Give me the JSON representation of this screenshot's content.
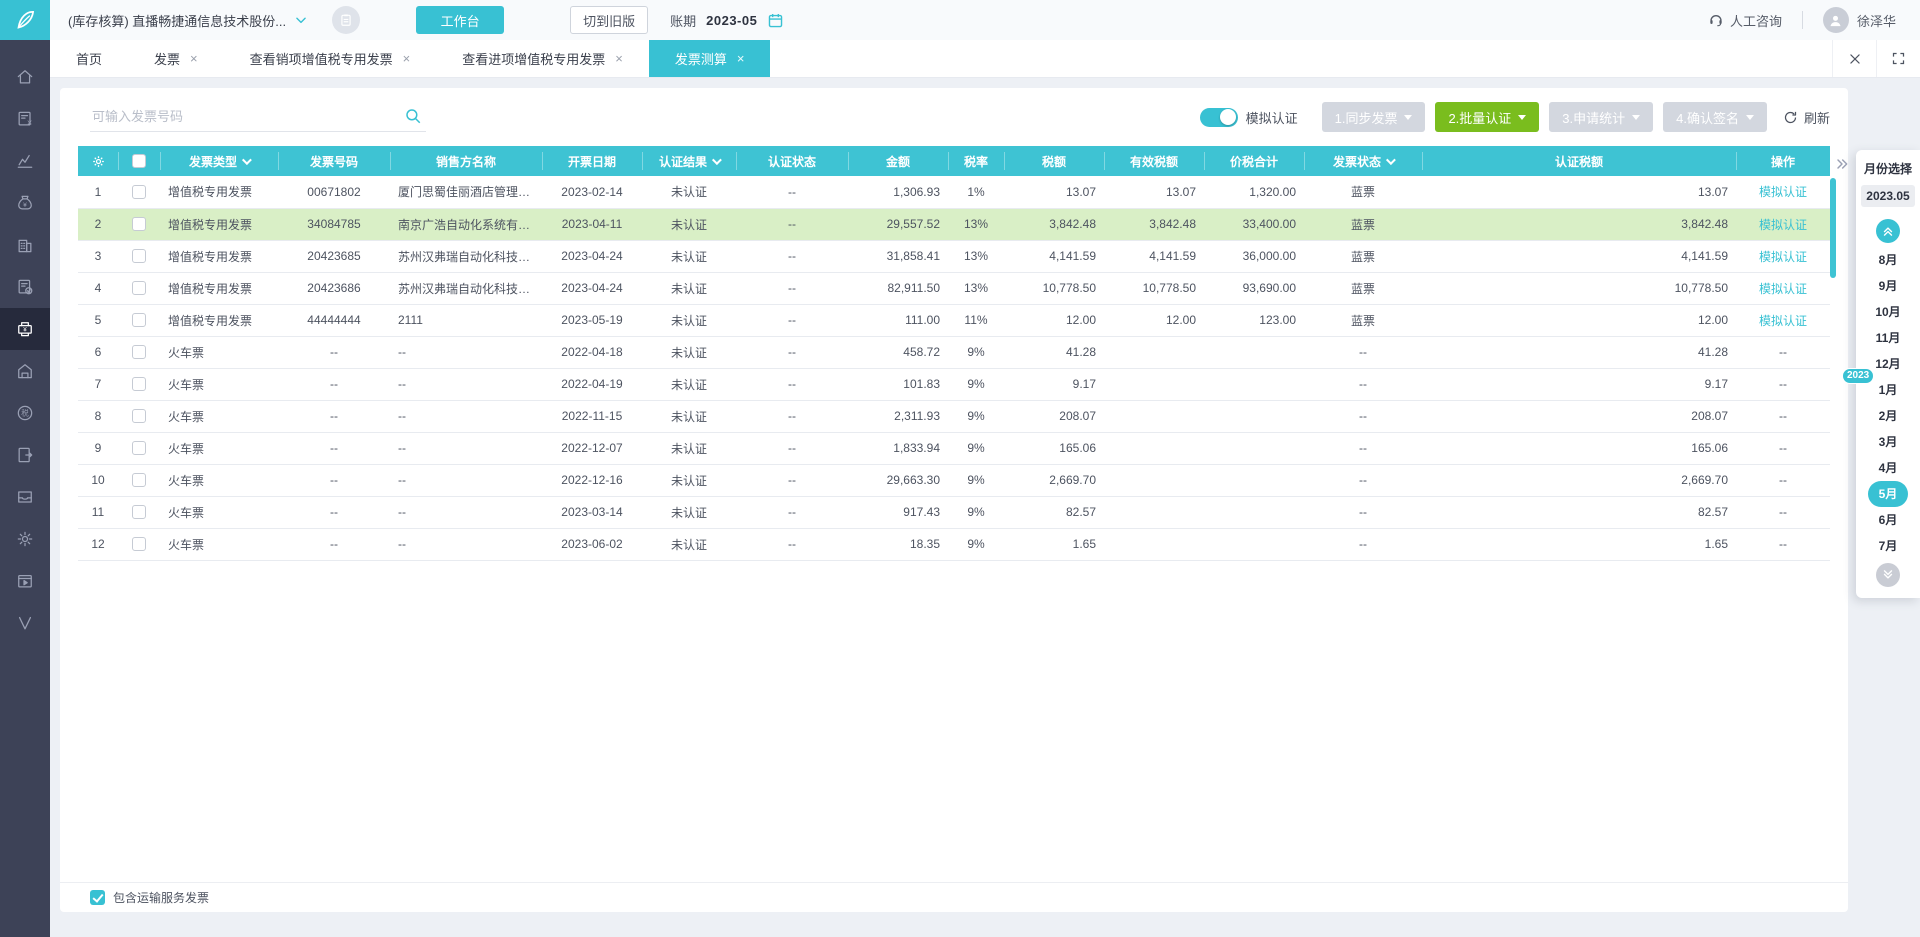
{
  "accent": "#38c1d3",
  "topbar": {
    "company": "(库存核算) 直播畅捷通信息技术股份...",
    "workbench": "工作台",
    "switch_old": "切到旧版",
    "period_label": "账期",
    "period_value": "2023-05",
    "support": "人工咨询",
    "user": "徐泽华"
  },
  "tabbar": {
    "tabs": [
      {
        "label": "首页",
        "closable": false,
        "active": false
      },
      {
        "label": "发票",
        "closable": true,
        "active": false
      },
      {
        "label": "查看销项增值税专用发票",
        "closable": true,
        "active": false
      },
      {
        "label": "查看进项增值税专用发票",
        "closable": true,
        "active": false
      },
      {
        "label": "发票测算",
        "closable": true,
        "active": true
      }
    ]
  },
  "toolbar": {
    "search_placeholder": "可输入发票号码",
    "toggle_label": "模拟认证",
    "toggle_on": true,
    "buttons": [
      {
        "label": "1.同步发票",
        "variant": "gray"
      },
      {
        "label": "2.批量认证",
        "variant": "green"
      },
      {
        "label": "3.申请统计",
        "variant": "gray"
      },
      {
        "label": "4.确认签名",
        "variant": "gray"
      }
    ],
    "refresh": "刷新"
  },
  "table": {
    "headers": [
      {
        "label": "发票类型",
        "sort": true
      },
      {
        "label": "发票号码",
        "sort": false
      },
      {
        "label": "销售方名称",
        "sort": false
      },
      {
        "label": "开票日期",
        "sort": false
      },
      {
        "label": "认证结果",
        "sort": true
      },
      {
        "label": "认证状态",
        "sort": false
      },
      {
        "label": "金额",
        "sort": false
      },
      {
        "label": "税率",
        "sort": false
      },
      {
        "label": "税额",
        "sort": false
      },
      {
        "label": "有效税额",
        "sort": false
      },
      {
        "label": "价税合计",
        "sort": false
      },
      {
        "label": "发票状态",
        "sort": true
      },
      {
        "label": "认证税额",
        "sort": false
      },
      {
        "label": "操作",
        "sort": false
      }
    ],
    "rows": [
      {
        "no": "1",
        "cells": [
          "增值税专用发票",
          "00671802",
          "厦门思蜀佳丽酒店管理有限公司",
          "2023-02-14",
          "未认证",
          "--",
          "1,306.93",
          "1%",
          "13.07",
          "13.07",
          "1,320.00",
          "蓝票",
          "13.07"
        ],
        "action": "模拟认证",
        "action_link": true,
        "highlight": false
      },
      {
        "no": "2",
        "cells": [
          "增值税专用发票",
          "34084785",
          "南京广浩自动化系统有限责任公司",
          "2023-04-11",
          "未认证",
          "--",
          "29,557.52",
          "13%",
          "3,842.48",
          "3,842.48",
          "33,400.00",
          "蓝票",
          "3,842.48"
        ],
        "action": "模拟认证",
        "action_link": true,
        "highlight": true
      },
      {
        "no": "3",
        "cells": [
          "增值税专用发票",
          "20423685",
          "苏州汉弗瑞自动化科技有限公司",
          "2023-04-24",
          "未认证",
          "--",
          "31,858.41",
          "13%",
          "4,141.59",
          "4,141.59",
          "36,000.00",
          "蓝票",
          "4,141.59"
        ],
        "action": "模拟认证",
        "action_link": true,
        "highlight": false
      },
      {
        "no": "4",
        "cells": [
          "增值税专用发票",
          "20423686",
          "苏州汉弗瑞自动化科技有限公司",
          "2023-04-24",
          "未认证",
          "--",
          "82,911.50",
          "13%",
          "10,778.50",
          "10,778.50",
          "93,690.00",
          "蓝票",
          "10,778.50"
        ],
        "action": "模拟认证",
        "action_link": true,
        "highlight": false
      },
      {
        "no": "5",
        "cells": [
          "增值税专用发票",
          "44444444",
          "2111",
          "2023-05-19",
          "未认证",
          "--",
          "111.00",
          "11%",
          "12.00",
          "12.00",
          "123.00",
          "蓝票",
          "12.00"
        ],
        "action": "模拟认证",
        "action_link": true,
        "highlight": false
      },
      {
        "no": "6",
        "cells": [
          "火车票",
          "--",
          "--",
          "2022-04-18",
          "未认证",
          "--",
          "458.72",
          "9%",
          "41.28",
          "",
          "",
          "--",
          "41.28"
        ],
        "action": "--",
        "action_link": false,
        "highlight": false
      },
      {
        "no": "7",
        "cells": [
          "火车票",
          "--",
          "--",
          "2022-04-19",
          "未认证",
          "--",
          "101.83",
          "9%",
          "9.17",
          "",
          "",
          "--",
          "9.17"
        ],
        "action": "--",
        "action_link": false,
        "highlight": false
      },
      {
        "no": "8",
        "cells": [
          "火车票",
          "--",
          "--",
          "2022-11-15",
          "未认证",
          "--",
          "2,311.93",
          "9%",
          "208.07",
          "",
          "",
          "--",
          "208.07"
        ],
        "action": "--",
        "action_link": false,
        "highlight": false
      },
      {
        "no": "9",
        "cells": [
          "火车票",
          "--",
          "--",
          "2022-12-07",
          "未认证",
          "--",
          "1,833.94",
          "9%",
          "165.06",
          "",
          "",
          "--",
          "165.06"
        ],
        "action": "--",
        "action_link": false,
        "highlight": false
      },
      {
        "no": "10",
        "cells": [
          "火车票",
          "--",
          "--",
          "2022-12-16",
          "未认证",
          "--",
          "29,663.30",
          "9%",
          "2,669.70",
          "",
          "",
          "--",
          "2,669.70"
        ],
        "action": "--",
        "action_link": false,
        "highlight": false
      },
      {
        "no": "11",
        "cells": [
          "火车票",
          "--",
          "--",
          "2023-03-14",
          "未认证",
          "--",
          "917.43",
          "9%",
          "82.57",
          "",
          "",
          "--",
          "82.57"
        ],
        "action": "--",
        "action_link": false,
        "highlight": false
      },
      {
        "no": "12",
        "cells": [
          "火车票",
          "--",
          "--",
          "2023-06-02",
          "未认证",
          "--",
          "18.35",
          "9%",
          "1.65",
          "",
          "",
          "--",
          "1.65"
        ],
        "action": "--",
        "action_link": false,
        "highlight": false
      }
    ]
  },
  "month_panel": {
    "title": "月份选择",
    "current": "2023.05",
    "year_badge": "2023",
    "badge_before": "1月",
    "months": [
      "8月",
      "9月",
      "10月",
      "11月",
      "12月",
      "1月",
      "2月",
      "3月",
      "4月",
      "5月",
      "6月",
      "7月"
    ],
    "selected": "5月"
  },
  "footer": {
    "label": "包含运输服务发票",
    "checked": true
  },
  "sidebar": {
    "items": [
      {
        "name": "home-icon",
        "active": false
      },
      {
        "name": "voucher-icon",
        "active": false
      },
      {
        "name": "chart-icon",
        "active": false
      },
      {
        "name": "money-bag-icon",
        "active": false
      },
      {
        "name": "company-icon",
        "active": false
      },
      {
        "name": "report-check-icon",
        "active": false
      },
      {
        "name": "invoice-print-icon",
        "active": true
      },
      {
        "name": "warehouse-icon",
        "active": false
      },
      {
        "name": "tax-icon",
        "active": false
      },
      {
        "name": "carryover-icon",
        "active": false
      },
      {
        "name": "inbox-icon",
        "active": false
      },
      {
        "name": "gear-icon",
        "active": false
      },
      {
        "name": "video-icon",
        "active": false
      },
      {
        "name": "v-logo-icon",
        "active": false
      }
    ]
  }
}
